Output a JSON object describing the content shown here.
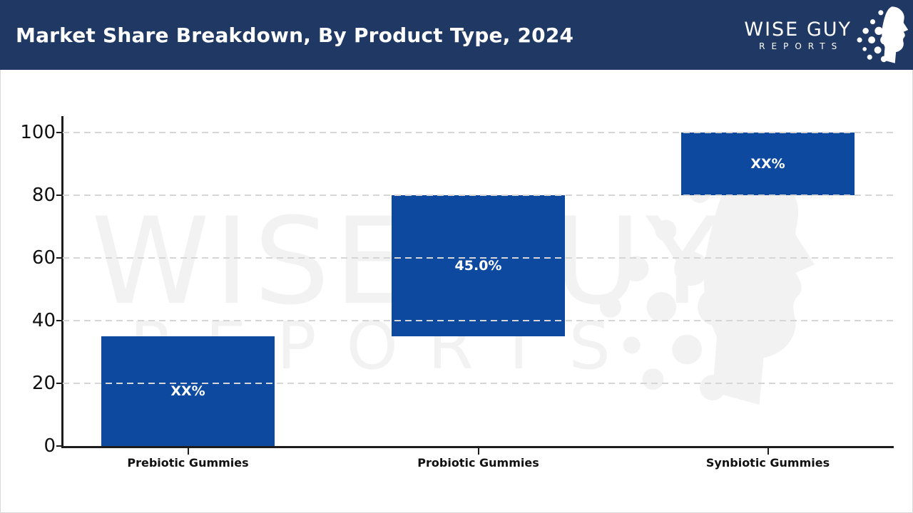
{
  "header": {
    "title": "Market Share Breakdown, By Product Type, 2024",
    "logo": {
      "name": "WISE GUY",
      "sub": "REPORTS"
    }
  },
  "watermark": {
    "name": "WISE GUY",
    "sub": "REPORTS"
  },
  "colors": {
    "header_bg": "#1f3864",
    "bar": "#0d4a9f",
    "bar_label": "#ffffff",
    "grid": "#d6d6d6",
    "axis": "#1c1c1c",
    "tick_text": "#111111",
    "watermark": "#f2f2f2",
    "border": "#d9d9d9"
  },
  "chart_data": {
    "type": "bar",
    "subtype": "floating-waterfall",
    "title": "Market Share Breakdown, By Product Type, 2024",
    "categories": [
      "Prebiotic Gummies",
      "Probiotic Gummies",
      "Synbiotic Gummies"
    ],
    "bars": [
      {
        "category": "Prebiotic Gummies",
        "label": "XX%",
        "start": 0,
        "end": 35
      },
      {
        "category": "Probiotic Gummies",
        "label": "45.0%",
        "start": 35,
        "end": 80
      },
      {
        "category": "Synbiotic Gummies",
        "label": "XX%",
        "start": 80,
        "end": 100
      }
    ],
    "yticks": [
      0,
      20,
      40,
      60,
      80,
      100
    ],
    "ylim": [
      0,
      100
    ],
    "grid": "horizontal-dashed-above-bars",
    "legend": "none"
  }
}
